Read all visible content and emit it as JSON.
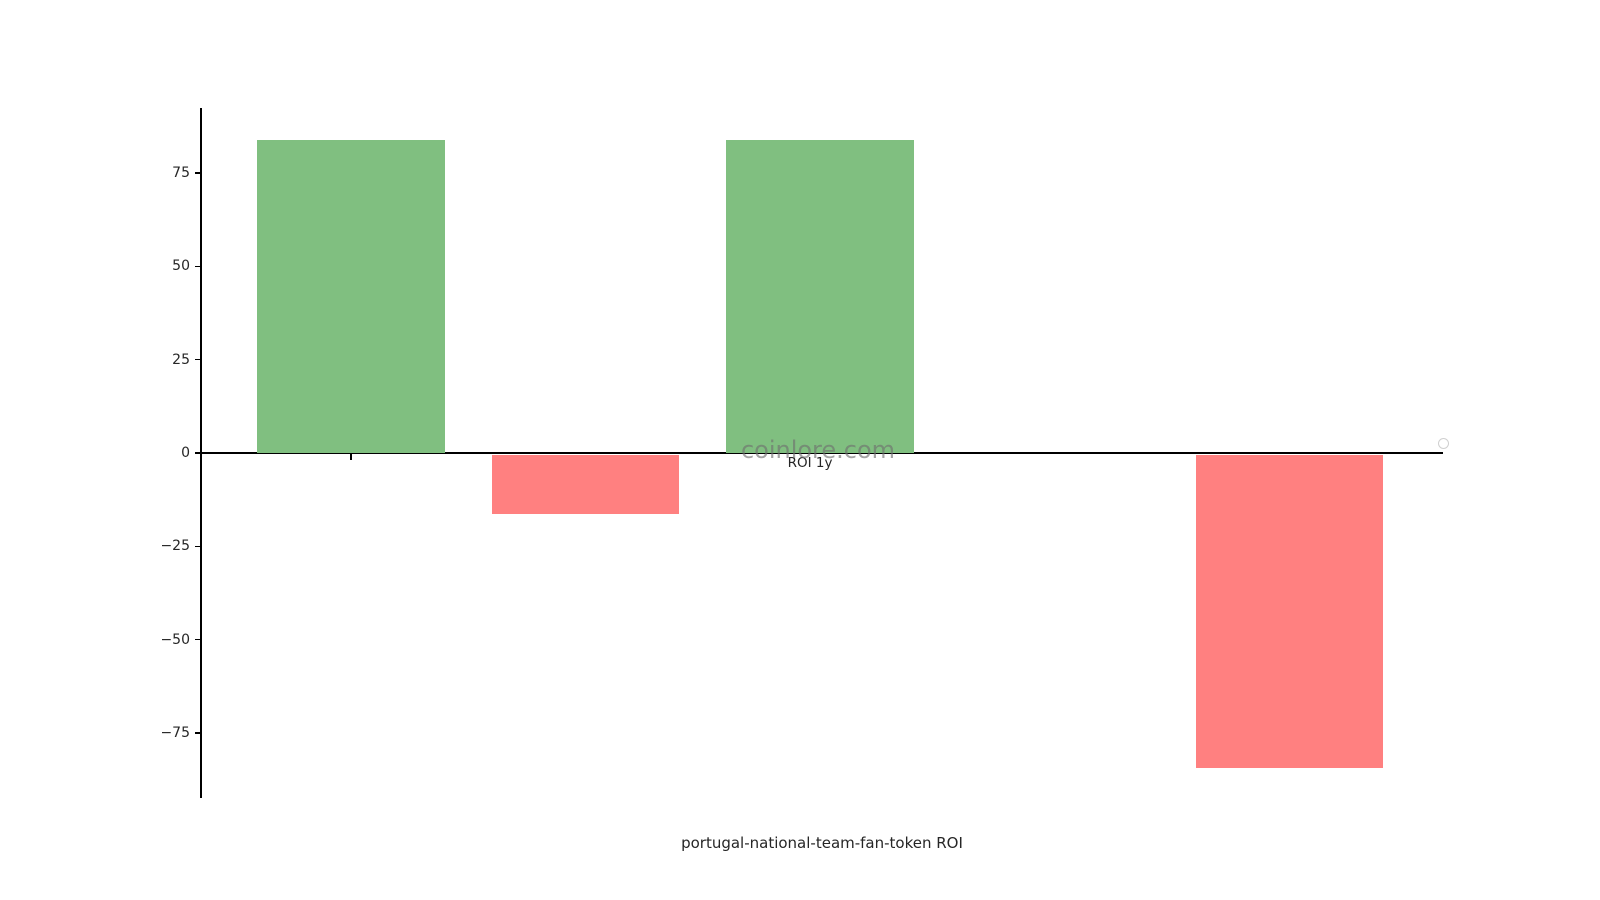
{
  "page": {
    "background": "#ffffff"
  },
  "chart_data": {
    "type": "bar",
    "title": "portugal-national-team-fan-token ROI",
    "watermark": "coinlore.com",
    "categories": [
      "",
      "",
      "ROI 1y",
      "",
      ""
    ],
    "values": [
      84,
      -16,
      84,
      0,
      -84
    ],
    "yticks": [
      75,
      50,
      25,
      0,
      -25,
      -50,
      -75
    ],
    "ylim": [
      -92,
      92
    ],
    "grid": false,
    "legend": "none",
    "positive_color": "#80bf80",
    "negative_color": "#ff8080",
    "axis_color": "#000000",
    "tick_label_color": "#262626",
    "watermark_color": "#6e6e6e",
    "x_tick_slots_visible": [
      0
    ]
  }
}
